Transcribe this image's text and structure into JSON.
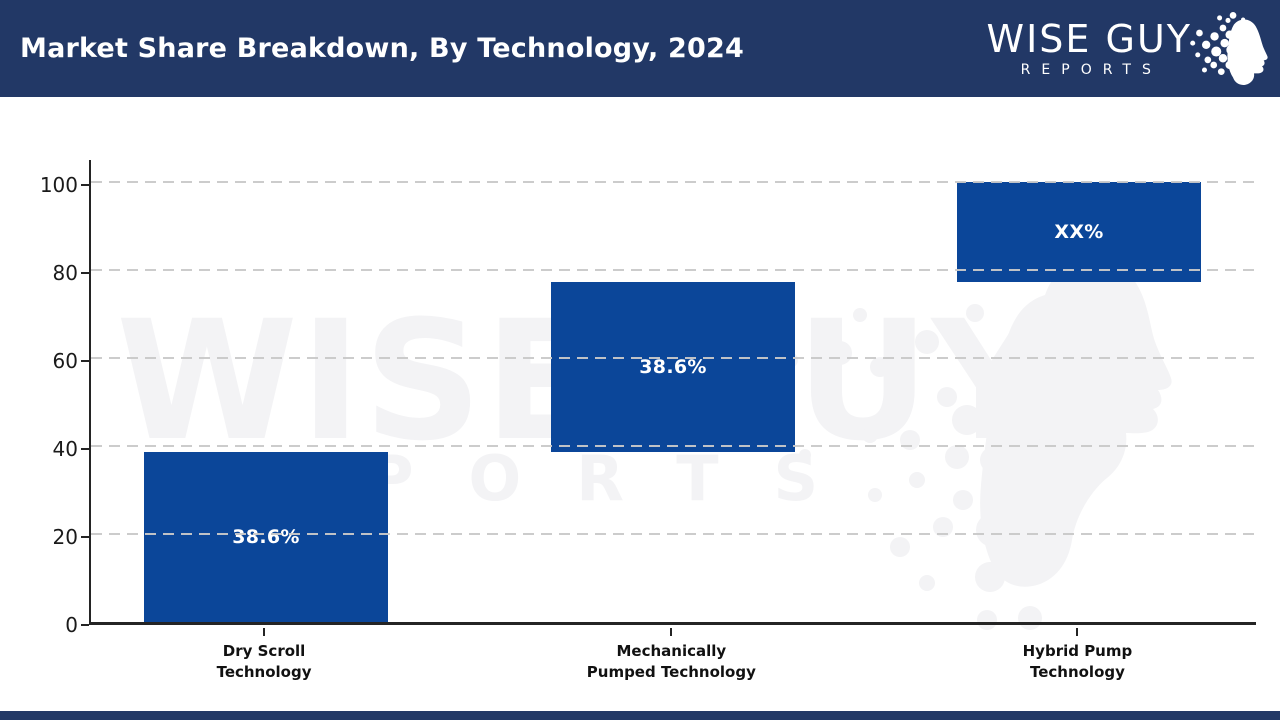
{
  "header": {
    "title": "Market Share Breakdown, By Technology, 2024",
    "logo": {
      "line1": "WISE GUY",
      "line2": "REPORTS"
    }
  },
  "watermark": {
    "line1": "WISE GUY",
    "line2": "REPORTS"
  },
  "chart_data": {
    "type": "bar",
    "subtype": "waterfall",
    "title": "Market Share Breakdown, By Technology, 2024",
    "categories": [
      [
        "Dry Scroll",
        "Technology"
      ],
      [
        "Mechanically",
        "Pumped Technology"
      ],
      [
        "Hybrid Pump",
        "Technology"
      ]
    ],
    "bars": [
      {
        "label": "38.6%",
        "start": 0,
        "end": 38.6
      },
      {
        "label": "38.6%",
        "start": 38.6,
        "end": 77.2
      },
      {
        "label": "XX%",
        "start": 77.2,
        "end": 100
      }
    ],
    "yticks": [
      0,
      20,
      40,
      60,
      80,
      100
    ],
    "ylim": [
      0,
      105.7
    ],
    "xlabel": "",
    "ylabel": "",
    "grid": "dashed-horizontal",
    "legend": "none",
    "colors": {
      "bar": "#0b4699",
      "header_navy": "#223866",
      "axis": "#242424",
      "grid": "#c9c9c9",
      "watermark": "#f3f3f5"
    }
  }
}
